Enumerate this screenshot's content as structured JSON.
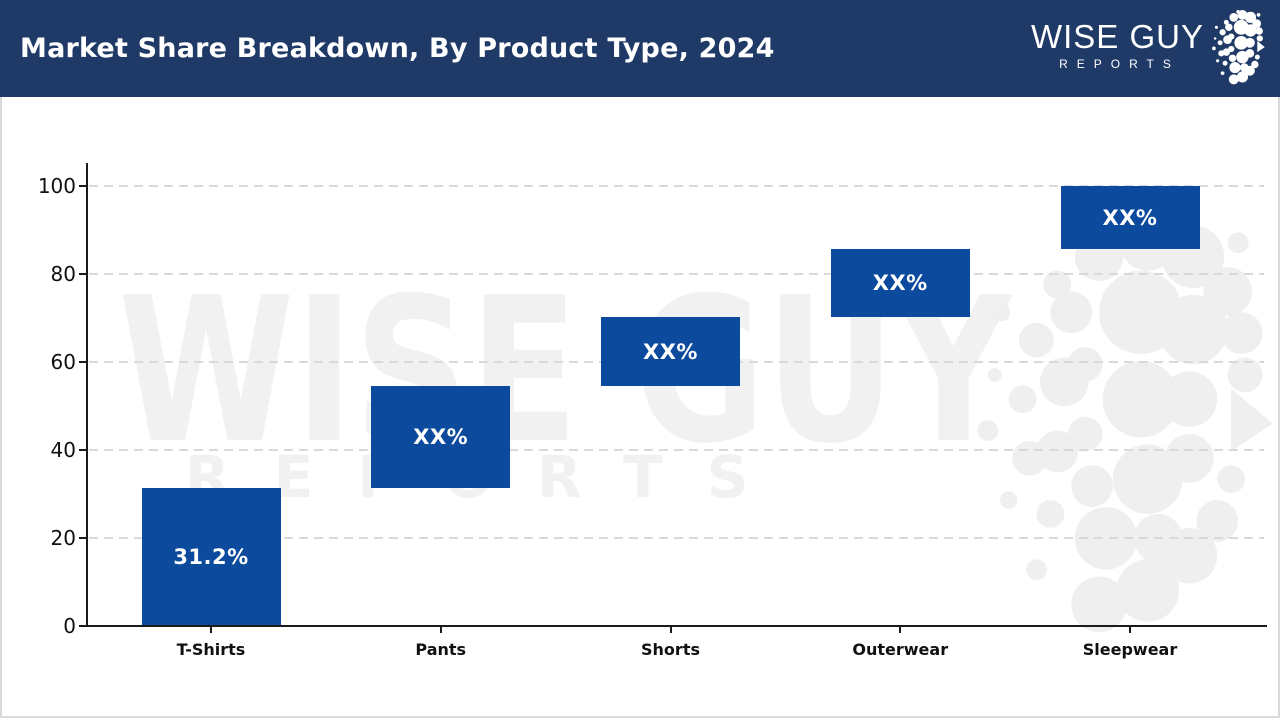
{
  "header": {
    "title": "Market Share Breakdown, By Product Type, 2024",
    "logo": {
      "name": "WISE GUY",
      "sub": "REPORTS"
    }
  },
  "watermark": {
    "line1": "WISE GUY",
    "line2": "REPORTS"
  },
  "chart_data": {
    "type": "bar",
    "subtype": "waterfall",
    "title": "Market Share Breakdown, By Product Type, 2024",
    "categories": [
      "T-Shirts",
      "Pants",
      "Shorts",
      "Outerwear",
      "Sleepwear"
    ],
    "bars": [
      {
        "category": "T-Shirts",
        "start": 0,
        "end": 31.2,
        "label": "31.2%"
      },
      {
        "category": "Pants",
        "start": 31.2,
        "end": 54.5,
        "label": "XX%"
      },
      {
        "category": "Shorts",
        "start": 54.5,
        "end": 70.2,
        "label": "XX%"
      },
      {
        "category": "Outerwear",
        "start": 70.3,
        "end": 85.7,
        "label": "XX%"
      },
      {
        "category": "Sleepwear",
        "start": 85.7,
        "end": 100,
        "label": "XX%"
      }
    ],
    "xlabel": "",
    "ylabel": "",
    "ylim": [
      0,
      100
    ],
    "yticks": [
      0,
      20,
      40,
      60,
      80,
      100
    ],
    "grid": "horizontal-dashed",
    "legend": "none",
    "colors": {
      "bar": "#0b4a9c",
      "bar_label": "#ffffff",
      "grid": "#d9d9d9",
      "axis": "#1a1a1a",
      "header_bg": "#203a68",
      "watermark_text": "#f1f1f1",
      "watermark_face": "#efefef",
      "frame_border": "#d9d9d9"
    }
  }
}
